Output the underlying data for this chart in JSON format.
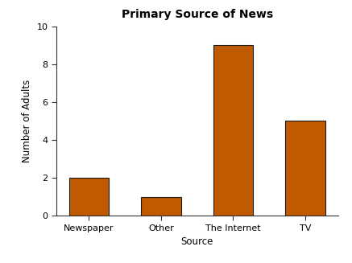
{
  "title": "Primary Source of News",
  "categories": [
    "Newspaper",
    "Other",
    "The Internet",
    "TV"
  ],
  "values": [
    2,
    1,
    9,
    5
  ],
  "bar_color": "#C05A00",
  "bar_edgecolor": "#1A1A1A",
  "xlabel": "Source",
  "ylabel": "Number of Adults",
  "ylim": [
    0,
    10
  ],
  "yticks": [
    0,
    2,
    4,
    6,
    8,
    10
  ],
  "background_color": "#FFFFFF",
  "title_fontsize": 10,
  "axis_label_fontsize": 8.5,
  "tick_fontsize": 8,
  "bar_width": 0.55
}
